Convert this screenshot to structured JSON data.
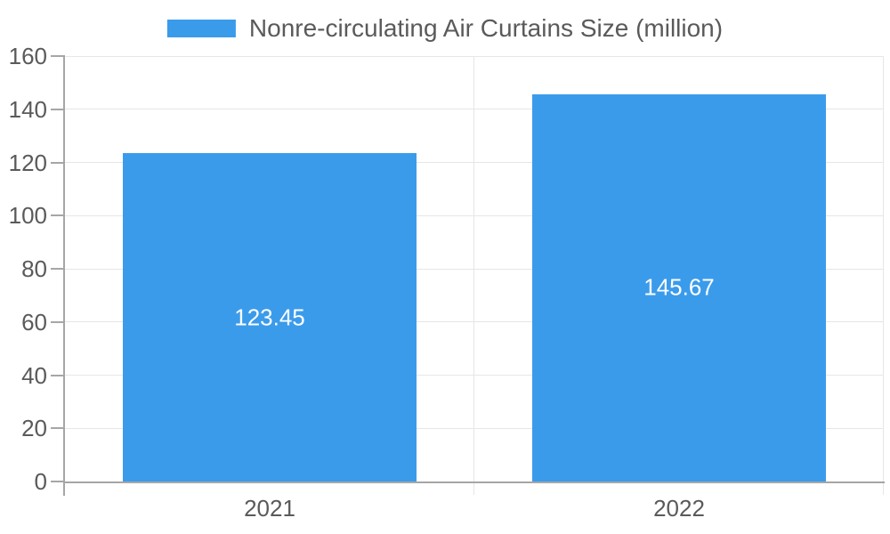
{
  "legend": {
    "label": "Nonre-circulating Air Curtains Size (million)",
    "swatch_color": "#3b9beb"
  },
  "chart_data": {
    "type": "bar",
    "title": "Nonre-circulating Air Curtains Size (million)",
    "categories": [
      "2021",
      "2022"
    ],
    "values": [
      123.45,
      145.67
    ],
    "value_labels": [
      "123.45",
      "145.67"
    ],
    "xlabel": "",
    "ylabel": "",
    "ylim": [
      0,
      160
    ],
    "yticks": [
      0,
      20,
      40,
      60,
      80,
      100,
      120,
      140,
      160
    ],
    "grid": true,
    "legend_position": "top-center",
    "colors": {
      "bar": "#3b9beb",
      "value_label": "#ffffff",
      "axis_text": "#5a5a5a",
      "legend_text": "#5a5a5a",
      "grid_line": "#e6e6e6",
      "axis_line": "#a6a6a6",
      "background": "#ffffff"
    }
  }
}
